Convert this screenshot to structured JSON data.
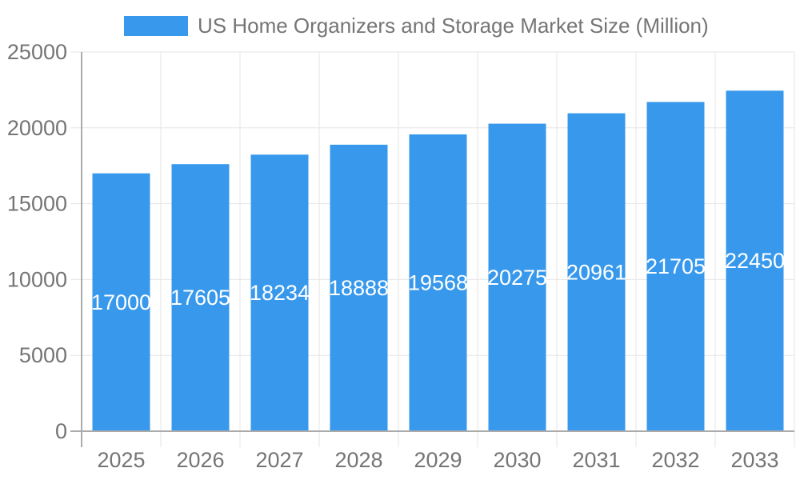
{
  "chart_data": {
    "type": "bar",
    "title": "US Home Organizers and Storage Market Size (Million)",
    "categories": [
      "2025",
      "2026",
      "2027",
      "2028",
      "2029",
      "2030",
      "2031",
      "2032",
      "2033"
    ],
    "values": [
      17000,
      17605,
      18234,
      18888,
      19568,
      20275,
      20961,
      21705,
      22450
    ],
    "xlabel": "",
    "ylabel": "",
    "ylim": [
      0,
      25000
    ],
    "y_ticks": [
      0,
      5000,
      10000,
      15000,
      20000,
      25000
    ],
    "grid": true,
    "legend_position": "top",
    "bar_labels_visible": true
  },
  "colors": {
    "bar": "#3899EC",
    "axis_text": "#757575",
    "grid_line": "#E6E6E6",
    "axis_line": "#ABABAB",
    "value_label": "#FFFFFF",
    "background": "#FFFFFF"
  }
}
